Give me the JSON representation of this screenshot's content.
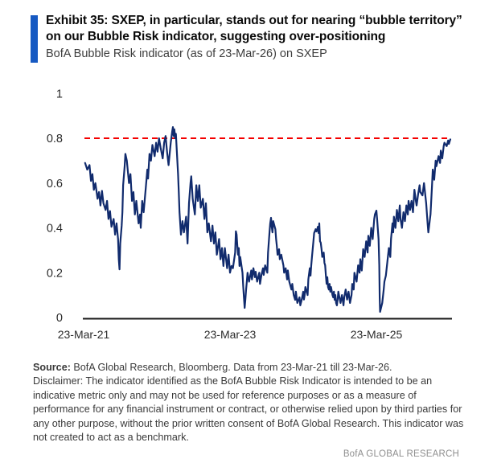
{
  "header": {
    "title": "Exhibit 35: SXEP, in particular, stands out for nearing “bubble territory” on our Bubble Risk indicator, suggesting over-positioning",
    "subtitle": "BofA Bubble Risk indicator (as of 23-Mar-26) on SXEP"
  },
  "footer": {
    "source_label": "Source:",
    "source_text": " BofA Global Research, Bloomberg. Data from 23-Mar-21 till 23-Mar-26.",
    "disclaimer": "Disclaimer: The indicator identified as the BofA Bubble Risk Indicator is intended to be an indicative metric only and may not be used for reference purposes or as a measure of performance for any financial instrument or contract, or otherwise relied upon by third parties for any other purpose, without the prior written consent of BofA Global Research. This indicator was not created to act as a benchmark.",
    "brand": "BofA GLOBAL RESEARCH"
  },
  "colors": {
    "accent": "#1659C2",
    "line": "#112B6D",
    "threshold": "#F40000",
    "axis": "#1a1a1a",
    "tick-text": "#2b2b2b"
  },
  "chart_data": {
    "type": "line",
    "title": "BofA Bubble Risk indicator (as of 23-Mar-26) on SXEP",
    "xlabel": "",
    "ylabel": "",
    "ylim": [
      0,
      1
    ],
    "x_range_years": [
      0,
      5.01
    ],
    "grid": false,
    "legend": "none",
    "threshold": {
      "value": 0.8,
      "color": "#F40000",
      "style": "dashed"
    },
    "y_axis": {
      "ticks": [
        {
          "value": 1,
          "label": "1"
        },
        {
          "value": 0.8,
          "label": "0.8"
        },
        {
          "value": 0.6,
          "label": "0.6"
        },
        {
          "value": 0.4,
          "label": "0.4"
        },
        {
          "value": 0.2,
          "label": "0.2"
        },
        {
          "value": 0,
          "label": "0"
        }
      ]
    },
    "x_axis": {
      "ticks": [
        {
          "t": 0,
          "label": "23-Mar-21"
        },
        {
          "t": 2,
          "label": "23-Mar-23"
        },
        {
          "t": 4,
          "label": "23-Mar-25"
        }
      ]
    },
    "series": [
      {
        "name": "BofA Bubble Risk indicator (SXEP)",
        "color": "#112B6D",
        "points": [
          [
            0.02,
            0.69
          ],
          [
            0.05,
            0.66
          ],
          [
            0.08,
            0.68
          ],
          [
            0.1,
            0.61
          ],
          [
            0.12,
            0.64
          ],
          [
            0.14,
            0.57
          ],
          [
            0.16,
            0.6
          ],
          [
            0.19,
            0.53
          ],
          [
            0.21,
            0.56
          ],
          [
            0.23,
            0.5
          ],
          [
            0.25,
            0.565
          ],
          [
            0.27,
            0.51
          ],
          [
            0.3,
            0.48
          ],
          [
            0.32,
            0.52
          ],
          [
            0.34,
            0.44
          ],
          [
            0.36,
            0.475
          ],
          [
            0.38,
            0.405
          ],
          [
            0.41,
            0.44
          ],
          [
            0.43,
            0.37
          ],
          [
            0.45,
            0.42
          ],
          [
            0.47,
            0.35
          ],
          [
            0.48,
            0.26
          ],
          [
            0.49,
            0.215
          ],
          [
            0.5,
            0.33
          ],
          [
            0.52,
            0.41
          ],
          [
            0.53,
            0.47
          ],
          [
            0.54,
            0.59
          ],
          [
            0.56,
            0.675
          ],
          [
            0.57,
            0.73
          ],
          [
            0.59,
            0.7
          ],
          [
            0.62,
            0.6
          ],
          [
            0.64,
            0.64
          ],
          [
            0.66,
            0.52
          ],
          [
            0.68,
            0.56
          ],
          [
            0.7,
            0.46
          ],
          [
            0.72,
            0.52
          ],
          [
            0.75,
            0.42
          ],
          [
            0.77,
            0.46
          ],
          [
            0.78,
            0.4
          ],
          [
            0.8,
            0.52
          ],
          [
            0.82,
            0.47
          ],
          [
            0.85,
            0.58
          ],
          [
            0.87,
            0.66
          ],
          [
            0.88,
            0.62
          ],
          [
            0.9,
            0.73
          ],
          [
            0.92,
            0.7
          ],
          [
            0.94,
            0.77
          ],
          [
            0.97,
            0.72
          ],
          [
            0.99,
            0.78
          ],
          [
            1.01,
            0.74
          ],
          [
            1.03,
            0.8
          ],
          [
            1.05,
            0.76
          ],
          [
            1.08,
            0.71
          ],
          [
            1.1,
            0.78
          ],
          [
            1.12,
            0.81
          ],
          [
            1.14,
            0.74
          ],
          [
            1.16,
            0.68
          ],
          [
            1.19,
            0.78
          ],
          [
            1.21,
            0.83
          ],
          [
            1.22,
            0.85
          ],
          [
            1.23,
            0.81
          ],
          [
            1.24,
            0.84
          ],
          [
            1.25,
            0.8
          ],
          [
            1.26,
            0.82
          ],
          [
            1.27,
            0.76
          ],
          [
            1.29,
            0.64
          ],
          [
            1.3,
            0.56
          ],
          [
            1.31,
            0.47
          ],
          [
            1.33,
            0.37
          ],
          [
            1.35,
            0.43
          ],
          [
            1.37,
            0.38
          ],
          [
            1.4,
            0.45
          ],
          [
            1.42,
            0.33
          ],
          [
            1.44,
            0.51
          ],
          [
            1.46,
            0.6
          ],
          [
            1.47,
            0.63
          ],
          [
            1.49,
            0.53
          ],
          [
            1.52,
            0.46
          ],
          [
            1.54,
            0.59
          ],
          [
            1.56,
            0.52
          ],
          [
            1.58,
            0.59
          ],
          [
            1.6,
            0.49
          ],
          [
            1.63,
            0.53
          ],
          [
            1.65,
            0.44
          ],
          [
            1.67,
            0.51
          ],
          [
            1.69,
            0.38
          ],
          [
            1.71,
            0.42
          ],
          [
            1.74,
            0.34
          ],
          [
            1.76,
            0.41
          ],
          [
            1.78,
            0.33
          ],
          [
            1.8,
            0.38
          ],
          [
            1.82,
            0.28
          ],
          [
            1.85,
            0.35
          ],
          [
            1.87,
            0.26
          ],
          [
            1.89,
            0.31
          ],
          [
            1.91,
            0.23
          ],
          [
            1.93,
            0.31
          ],
          [
            1.96,
            0.22
          ],
          [
            1.98,
            0.28
          ],
          [
            2.0,
            0.2
          ],
          [
            2.02,
            0.23
          ],
          [
            2.04,
            0.22
          ],
          [
            2.07,
            0.29
          ],
          [
            2.08,
            0.385
          ],
          [
            2.09,
            0.37
          ],
          [
            2.1,
            0.32
          ],
          [
            2.11,
            0.28
          ],
          [
            2.12,
            0.31
          ],
          [
            2.13,
            0.23
          ],
          [
            2.14,
            0.27
          ],
          [
            2.17,
            0.2
          ],
          [
            2.18,
            0.14
          ],
          [
            2.19,
            0.09
          ],
          [
            2.2,
            0.043
          ],
          [
            2.21,
            0.08
          ],
          [
            2.22,
            0.125
          ],
          [
            2.23,
            0.16
          ],
          [
            2.24,
            0.2
          ],
          [
            2.26,
            0.16
          ],
          [
            2.29,
            0.21
          ],
          [
            2.3,
            0.17
          ],
          [
            2.32,
            0.22
          ],
          [
            2.34,
            0.18
          ],
          [
            2.35,
            0.204
          ],
          [
            2.37,
            0.16
          ],
          [
            2.4,
            0.2
          ],
          [
            2.41,
            0.15
          ],
          [
            2.43,
            0.19
          ],
          [
            2.45,
            0.22
          ],
          [
            2.46,
            0.19
          ],
          [
            2.48,
            0.233
          ],
          [
            2.51,
            0.2
          ],
          [
            2.52,
            0.29
          ],
          [
            2.54,
            0.38
          ],
          [
            2.55,
            0.42
          ],
          [
            2.56,
            0.445
          ],
          [
            2.57,
            0.405
          ],
          [
            2.58,
            0.38
          ],
          [
            2.59,
            0.43
          ],
          [
            2.62,
            0.394
          ],
          [
            2.63,
            0.35
          ],
          [
            2.64,
            0.32
          ],
          [
            2.65,
            0.28
          ],
          [
            2.67,
            0.305
          ],
          [
            2.68,
            0.26
          ],
          [
            2.7,
            0.28
          ],
          [
            2.73,
            0.233
          ],
          [
            2.74,
            0.2
          ],
          [
            2.76,
            0.22
          ],
          [
            2.78,
            0.17
          ],
          [
            2.79,
            0.21
          ],
          [
            2.81,
            0.16
          ],
          [
            2.84,
            0.125
          ],
          [
            2.85,
            0.15
          ],
          [
            2.87,
            0.1
          ],
          [
            2.89,
            0.079
          ],
          [
            2.9,
            0.115
          ],
          [
            2.92,
            0.065
          ],
          [
            2.95,
            0.09
          ],
          [
            2.96,
            0.054
          ],
          [
            2.98,
            0.08
          ],
          [
            3.0,
            0.115
          ],
          [
            3.01,
            0.08
          ],
          [
            3.02,
            0.1
          ],
          [
            3.03,
            0.136
          ],
          [
            3.06,
            0.1
          ],
          [
            3.07,
            0.17
          ],
          [
            3.09,
            0.22
          ],
          [
            3.1,
            0.187
          ],
          [
            3.11,
            0.233
          ],
          [
            3.12,
            0.27
          ],
          [
            3.13,
            0.305
          ],
          [
            3.14,
            0.34
          ],
          [
            3.15,
            0.377
          ],
          [
            3.17,
            0.394
          ],
          [
            3.18,
            0.384
          ],
          [
            3.19,
            0.39
          ],
          [
            3.2,
            0.405
          ],
          [
            3.21,
            0.377
          ],
          [
            3.22,
            0.42
          ],
          [
            3.23,
            0.34
          ],
          [
            3.24,
            0.334
          ],
          [
            3.25,
            0.305
          ],
          [
            3.26,
            0.27
          ],
          [
            3.28,
            0.29
          ],
          [
            3.29,
            0.244
          ],
          [
            3.3,
            0.233
          ],
          [
            3.31,
            0.187
          ],
          [
            3.32,
            0.15
          ],
          [
            3.33,
            0.18
          ],
          [
            3.34,
            0.136
          ],
          [
            3.35,
            0.125
          ],
          [
            3.36,
            0.15
          ],
          [
            3.37,
            0.115
          ],
          [
            3.38,
            0.136
          ],
          [
            3.4,
            0.1
          ],
          [
            3.41,
            0.09
          ],
          [
            3.42,
            0.115
          ],
          [
            3.43,
            0.079
          ],
          [
            3.44,
            0.1
          ],
          [
            3.45,
            0.065
          ],
          [
            3.46,
            0.054
          ],
          [
            3.47,
            0.079
          ],
          [
            3.48,
            0.115
          ],
          [
            3.51,
            0.065
          ],
          [
            3.53,
            0.1
          ],
          [
            3.55,
            0.054
          ],
          [
            3.56,
            0.09
          ],
          [
            3.58,
            0.125
          ],
          [
            3.6,
            0.08
          ],
          [
            3.62,
            0.115
          ],
          [
            3.64,
            0.065
          ],
          [
            3.66,
            0.1
          ],
          [
            3.67,
            0.15
          ],
          [
            3.69,
            0.125
          ],
          [
            3.7,
            0.2
          ],
          [
            3.73,
            0.16
          ],
          [
            3.75,
            0.233
          ],
          [
            3.77,
            0.2
          ],
          [
            3.78,
            0.26
          ],
          [
            3.8,
            0.21
          ],
          [
            3.82,
            0.305
          ],
          [
            3.84,
            0.27
          ],
          [
            3.86,
            0.34
          ],
          [
            3.88,
            0.29
          ],
          [
            3.89,
            0.365
          ],
          [
            3.91,
            0.32
          ],
          [
            3.93,
            0.4
          ],
          [
            3.95,
            0.35
          ],
          [
            3.97,
            0.44
          ],
          [
            3.98,
            0.46
          ],
          [
            4.0,
            0.477
          ],
          [
            4.01,
            0.44
          ],
          [
            4.03,
            0.35
          ],
          [
            4.04,
            0.233
          ],
          [
            4.045,
            0.09
          ],
          [
            4.05,
            0.025
          ],
          [
            4.08,
            0.065
          ],
          [
            4.1,
            0.125
          ],
          [
            4.11,
            0.16
          ],
          [
            4.13,
            0.187
          ],
          [
            4.15,
            0.25
          ],
          [
            4.17,
            0.31
          ],
          [
            4.19,
            0.27
          ],
          [
            4.2,
            0.35
          ],
          [
            4.22,
            0.42
          ],
          [
            4.23,
            0.38
          ],
          [
            4.24,
            0.45
          ],
          [
            4.26,
            0.4
          ],
          [
            4.28,
            0.48
          ],
          [
            4.3,
            0.43
          ],
          [
            4.32,
            0.5
          ],
          [
            4.33,
            0.44
          ],
          [
            4.35,
            0.4
          ],
          [
            4.37,
            0.47
          ],
          [
            4.39,
            0.43
          ],
          [
            4.41,
            0.5
          ],
          [
            4.43,
            0.46
          ],
          [
            4.44,
            0.52
          ],
          [
            4.46,
            0.48
          ],
          [
            4.48,
            0.52
          ],
          [
            4.5,
            0.47
          ],
          [
            4.52,
            0.57
          ],
          [
            4.54,
            0.52
          ],
          [
            4.55,
            0.5
          ],
          [
            4.57,
            0.55
          ],
          [
            4.59,
            0.59
          ],
          [
            4.6,
            0.56
          ],
          [
            4.63,
            0.545
          ],
          [
            4.65,
            0.6
          ],
          [
            4.68,
            0.51
          ],
          [
            4.7,
            0.42
          ],
          [
            4.71,
            0.38
          ],
          [
            4.74,
            0.46
          ],
          [
            4.76,
            0.59
          ],
          [
            4.77,
            0.66
          ],
          [
            4.79,
            0.615
          ],
          [
            4.81,
            0.7
          ],
          [
            4.82,
            0.675
          ],
          [
            4.85,
            0.72
          ],
          [
            4.87,
            0.69
          ],
          [
            4.88,
            0.745
          ],
          [
            4.9,
            0.71
          ],
          [
            4.92,
            0.765
          ],
          [
            4.93,
            0.78
          ],
          [
            4.96,
            0.765
          ],
          [
            4.98,
            0.79
          ],
          [
            4.99,
            0.775
          ],
          [
            5.01,
            0.795
          ]
        ]
      }
    ]
  }
}
